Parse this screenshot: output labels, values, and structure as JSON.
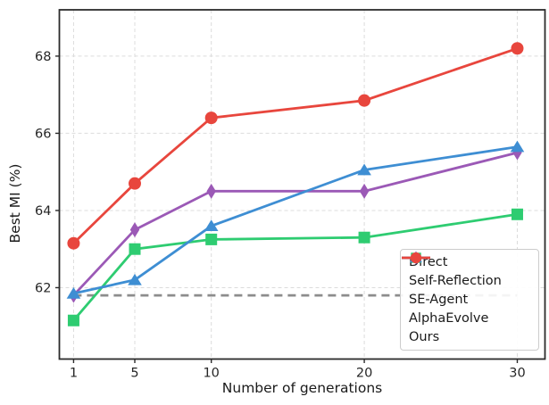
{
  "figure": {
    "background": "#ffffff",
    "spine_color": "#2b2b2b",
    "grid_color": "#dcdcdc",
    "tick_label_color": "#262626"
  },
  "chart_data": {
    "type": "line",
    "title": "",
    "xlabel": "Number of generations",
    "ylabel": "Best MI (%)",
    "x": [
      1,
      5,
      10,
      20,
      30
    ],
    "xticks": [
      1,
      5,
      10,
      20,
      30
    ],
    "yticks": [
      62,
      64,
      66,
      68
    ],
    "xlim": [
      0.07,
      31.81
    ],
    "ylim": [
      60.15,
      69.2
    ],
    "grid": true,
    "legend_position": "lower right",
    "series": [
      {
        "name": "Direct",
        "color": "#8c8c8c",
        "marker": "none",
        "line": "dashed",
        "values": [
          61.8,
          61.8,
          61.8,
          61.8,
          61.8
        ]
      },
      {
        "name": "Self-Reflection",
        "color": "#2ecc71",
        "marker": "square",
        "line": "solid",
        "values": [
          61.15,
          63.0,
          63.25,
          63.3,
          63.9
        ]
      },
      {
        "name": "SE-Agent",
        "color": "#9b59b6",
        "marker": "diamond",
        "line": "solid",
        "values": [
          61.8,
          63.5,
          64.5,
          64.5,
          65.5
        ]
      },
      {
        "name": "AlphaEvolve",
        "color": "#3e8ed3",
        "marker": "triangle",
        "line": "solid",
        "values": [
          61.85,
          62.2,
          63.6,
          65.05,
          65.65
        ]
      },
      {
        "name": "Ours",
        "color": "#e8463d",
        "marker": "circle",
        "line": "solid",
        "values": [
          63.15,
          64.7,
          66.4,
          66.85,
          68.2
        ]
      }
    ]
  }
}
